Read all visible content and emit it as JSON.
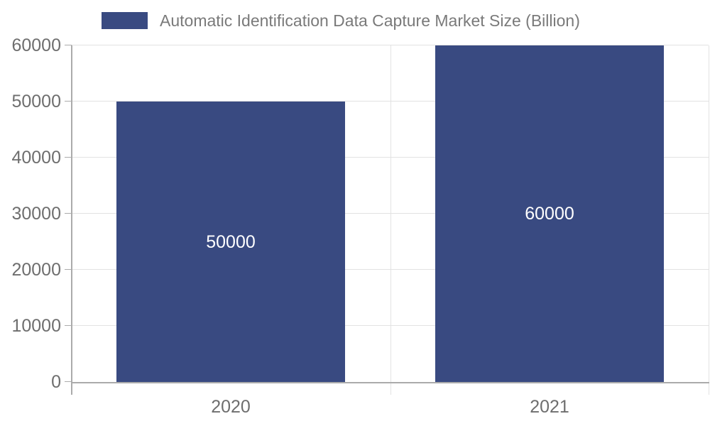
{
  "chart_data": {
    "type": "bar",
    "legend": [
      "Automatic Identification Data Capture Market Size (Billion)"
    ],
    "legend_position": "top-left",
    "categories": [
      "2020",
      "2021"
    ],
    "series": [
      {
        "name": "Automatic Identification Data Capture Market Size (Billion)",
        "values": [
          50000,
          60000
        ]
      }
    ],
    "bar_value_labels": [
      "50000",
      "60000"
    ],
    "xlabel": "",
    "ylabel": "",
    "ylim": [
      0,
      60000
    ],
    "ytick_interval": 10000,
    "ytick_labels": [
      "0",
      "10000",
      "20000",
      "30000",
      "40000",
      "50000",
      "60000"
    ],
    "grid": true,
    "colors": {
      "bar": "#394A81",
      "gridline": "#E2E2E2",
      "axis_line": "#ABABAB",
      "axis_text": "#6E6E6E",
      "legend_text": "#7A7A7A",
      "bar_label_text": "#FFFFFF",
      "background": "#FFFFFF"
    }
  }
}
